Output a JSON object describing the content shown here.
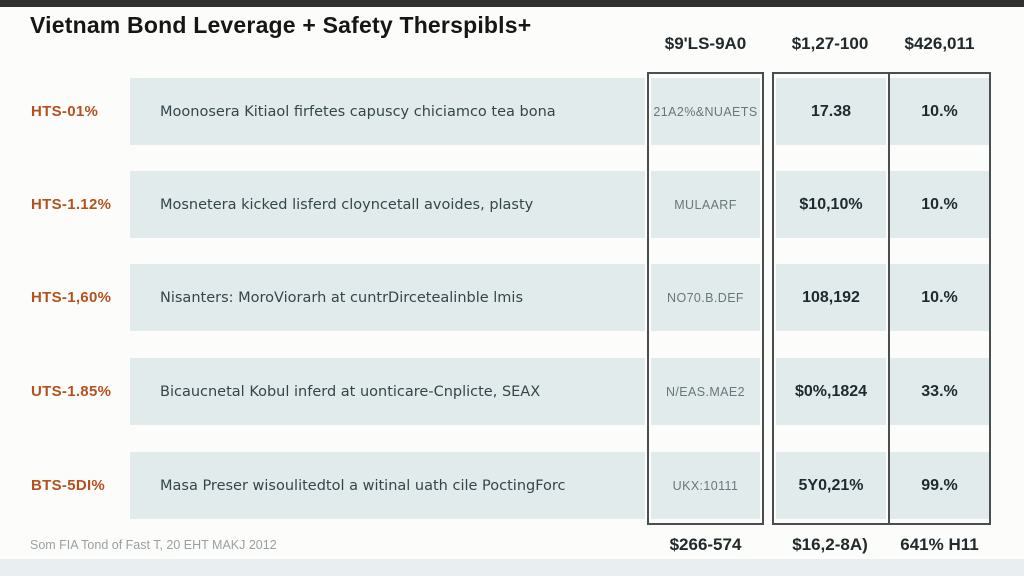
{
  "title": "Vietnam Bond Leverage + Safety Therspibls+",
  "header": {
    "col3_value": "$9'LS-9A0",
    "col4_value": "$1,27-100",
    "col5_value": "$426,011"
  },
  "rows": [
    {
      "label": "HTS-01%",
      "description": "Moonosera Kitiaol firfetes capuscy chiciamco tea bona",
      "code": "21A2%&NUAETS",
      "value": "17.38",
      "pct": "10.%"
    },
    {
      "label": "HTS-1.12%",
      "description": "Mosnetera kicked lisferd cloyncetall avoides, plasty",
      "code": "MULAARF",
      "value": "$10,10%",
      "pct": "10.%"
    },
    {
      "label": "HTS-1,60%",
      "description": "Nisanters: MoroViorarh at cuntrDircetealinble lmis",
      "code": "NO70.B.DEF",
      "value": "108,192",
      "pct": "10.%"
    },
    {
      "label": "UTS-1.85%",
      "description": "Bicaucnetal Kobul inferd at uonticare-Cnplicte, SEAX",
      "code": "N/EAS.MAE2",
      "value": "$0%,1824",
      "pct": "33.%"
    },
    {
      "label": "BTS-5DI%",
      "description": "Masa Preser wisoulitedtol a witinal uath cile PoctingForc",
      "code": "UKX:10111",
      "value": "5Y0,21%",
      "pct": "99.%"
    }
  ],
  "footer": {
    "source": "Som FIA Tond of Fast T, 20 EHT MAKJ 2012",
    "total_code": "$266-574",
    "total_value": "$16,2-8A)",
    "total_pct": "641% H11"
  },
  "colors": {
    "label_accent": "#b5511f",
    "cell_background": "#e1ebeb",
    "column_border": "#4a4e50",
    "top_strip": "#313131",
    "bottom_strip": "#e9eff0"
  }
}
